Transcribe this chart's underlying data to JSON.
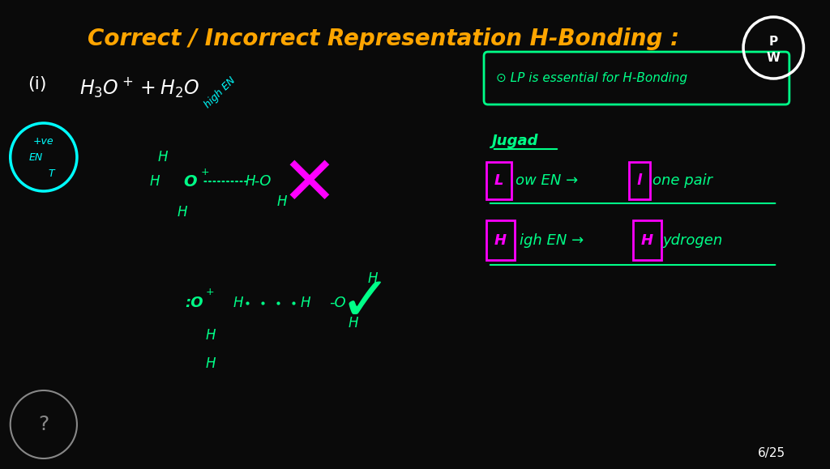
{
  "background_color": "#0a0a0a",
  "title": "Correct / Incorrect Representation H-Bonding :",
  "title_color": "#FFA500",
  "title_fontsize": 20,
  "subtitle_i": "(i)",
  "subtitle_color": "#FFFFFF",
  "green_color": "#00FF88",
  "cyan_color": "#00FFFF",
  "magenta_color": "#FF00FF",
  "page_num": "6/25",
  "note_lp": "⊙ LP is essential for H-Bonding"
}
